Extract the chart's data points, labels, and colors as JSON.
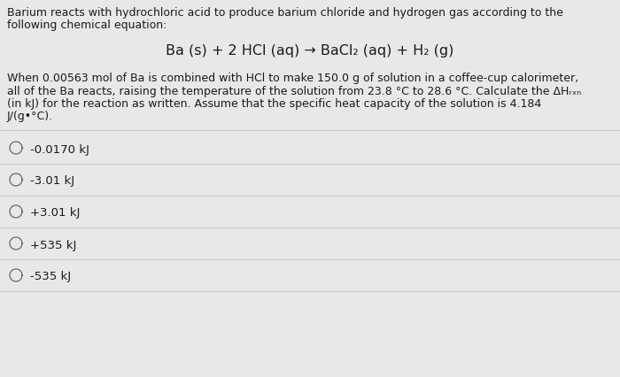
{
  "background_color": "#e8e8e8",
  "text_color": "#1a1a1a",
  "intro_line1": "Barium reacts with hydrochloric acid to produce barium chloride and hydrogen gas according to the",
  "intro_line2": "following chemical equation:",
  "equation": "Ba (s) + 2 HCl (aq) → BaCl₂ (aq) + H₂ (g)",
  "body_line1": "When 0.00563 mol of Ba is combined with HCl to make 150.0 g of solution in a coffee-cup calorimeter,",
  "body_line2": "all of the Ba reacts, raising the temperature of the solution from 23.8 °C to 28.6 °C. Calculate the ΔHᵣₓₙ",
  "body_line3": "(in kJ) for the reaction as written. Assume that the specific heat capacity of the solution is 4.184",
  "body_line4": "J/(g•°C).",
  "choices": [
    "-0.0170 kJ",
    "-3.01 kJ",
    "+3.01 kJ",
    "+535 kJ",
    "-535 kJ"
  ],
  "divider_color": "#c8c8c8",
  "circle_color": "#666666",
  "font_size_body": 9.0,
  "font_size_equation": 11.5,
  "font_size_choices": 9.5
}
